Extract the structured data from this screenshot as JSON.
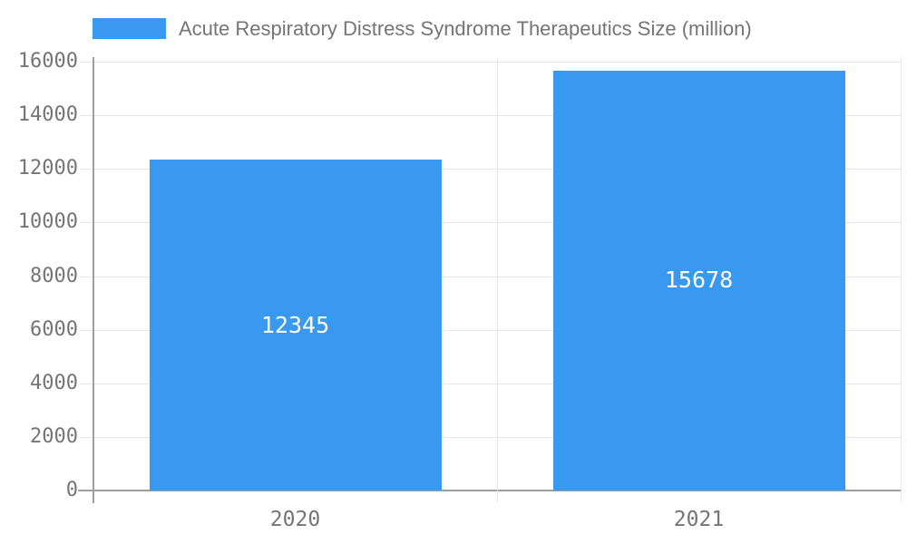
{
  "legend": {
    "label": "Acute Respiratory Distress Syndrome Therapeutics Size (million)"
  },
  "colors": {
    "bar": "#3999EE",
    "grid": "#E6E6E6",
    "axis": "#9E9E9E",
    "tick_text": "#757575",
    "value_label": "#FFFFFF",
    "background": "#FFFFFF"
  },
  "chart_data": {
    "type": "bar",
    "title": "",
    "categories": [
      "2020",
      "2021"
    ],
    "series": [
      {
        "name": "Acute Respiratory Distress Syndrome Therapeutics Size (million)",
        "values": [
          12345,
          15678
        ]
      }
    ],
    "data_labels": [
      "12345",
      "15678"
    ],
    "xlabel": "",
    "ylabel": "",
    "ylim": [
      0,
      16000
    ],
    "ytick_step": 2000,
    "ytick_labels": [
      "0",
      "2000",
      "4000",
      "6000",
      "8000",
      "10000",
      "12000",
      "14000",
      "16000"
    ],
    "grid": true,
    "legend_position": "top"
  }
}
